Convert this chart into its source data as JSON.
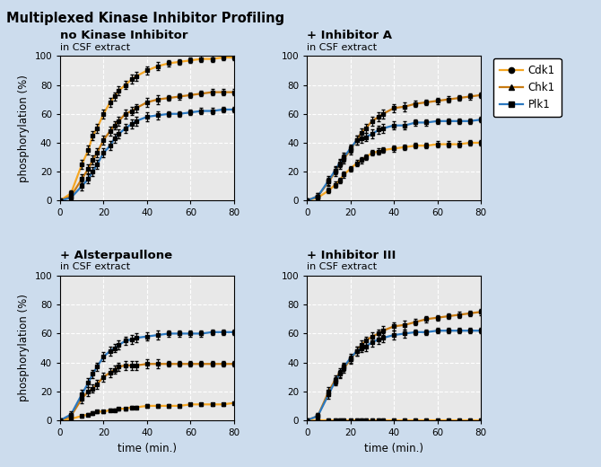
{
  "title": "Multiplexed Kinase Inhibitor Profiling",
  "subplots": [
    {
      "title": "no Kinase Inhibitor",
      "subtitle": "in CSF extract",
      "Cdk1": {
        "x": [
          0,
          5,
          10,
          13,
          15,
          17,
          20,
          23,
          25,
          27,
          30,
          33,
          35,
          40,
          45,
          50,
          55,
          60,
          65,
          70,
          75,
          80
        ],
        "y": [
          0,
          5,
          25,
          35,
          45,
          50,
          60,
          68,
          72,
          76,
          80,
          84,
          86,
          90,
          93,
          95,
          96,
          97,
          98,
          98,
          99,
          99
        ],
        "err": [
          0,
          2,
          3,
          3,
          3,
          3,
          3,
          3,
          3,
          3,
          3,
          3,
          3,
          3,
          3,
          2,
          2,
          2,
          2,
          2,
          2,
          2
        ]
      },
      "Chk1": {
        "x": [
          0,
          5,
          10,
          13,
          15,
          17,
          20,
          23,
          25,
          27,
          30,
          33,
          35,
          40,
          45,
          50,
          55,
          60,
          65,
          70,
          75,
          80
        ],
        "y": [
          0,
          3,
          15,
          22,
          28,
          33,
          42,
          48,
          52,
          55,
          60,
          62,
          64,
          68,
          70,
          71,
          72,
          73,
          74,
          75,
          75,
          75
        ],
        "err": [
          0,
          2,
          3,
          3,
          3,
          3,
          3,
          3,
          3,
          3,
          3,
          3,
          3,
          3,
          3,
          2,
          2,
          2,
          2,
          2,
          2,
          2
        ]
      },
      "Plk1": {
        "x": [
          0,
          5,
          10,
          13,
          15,
          17,
          20,
          23,
          25,
          27,
          30,
          33,
          35,
          40,
          45,
          50,
          55,
          60,
          65,
          70,
          75,
          80
        ],
        "y": [
          0,
          2,
          10,
          15,
          20,
          25,
          33,
          38,
          43,
          46,
          50,
          53,
          55,
          58,
          59,
          60,
          60,
          61,
          62,
          62,
          63,
          63
        ],
        "err": [
          0,
          2,
          3,
          3,
          3,
          3,
          3,
          3,
          3,
          3,
          3,
          3,
          3,
          3,
          3,
          2,
          2,
          2,
          2,
          2,
          2,
          2
        ]
      }
    },
    {
      "title": "+ Inhibitor A",
      "subtitle": "in CSF extract",
      "Cdk1": {
        "x": [
          0,
          5,
          10,
          13,
          15,
          17,
          20,
          23,
          25,
          27,
          30,
          33,
          35,
          40,
          45,
          50,
          55,
          60,
          65,
          70,
          75,
          80
        ],
        "y": [
          0,
          2,
          7,
          11,
          14,
          18,
          22,
          26,
          28,
          30,
          33,
          34,
          35,
          36,
          37,
          38,
          38,
          39,
          39,
          39,
          40,
          40
        ],
        "err": [
          0,
          2,
          2,
          2,
          2,
          2,
          2,
          2,
          2,
          2,
          2,
          2,
          2,
          2,
          2,
          2,
          2,
          2,
          2,
          2,
          2,
          2
        ]
      },
      "Chk1": {
        "x": [
          0,
          5,
          10,
          13,
          15,
          17,
          20,
          23,
          25,
          27,
          30,
          33,
          35,
          40,
          45,
          50,
          55,
          60,
          65,
          70,
          75,
          80
        ],
        "y": [
          0,
          3,
          13,
          20,
          25,
          29,
          35,
          42,
          47,
          50,
          55,
          58,
          60,
          64,
          65,
          67,
          68,
          69,
          70,
          71,
          72,
          73
        ],
        "err": [
          0,
          2,
          3,
          3,
          3,
          3,
          3,
          3,
          3,
          3,
          3,
          3,
          3,
          3,
          3,
          2,
          2,
          2,
          2,
          2,
          2,
          2
        ]
      },
      "Plk1": {
        "x": [
          0,
          5,
          10,
          13,
          15,
          17,
          20,
          23,
          25,
          27,
          30,
          33,
          35,
          40,
          45,
          50,
          55,
          60,
          65,
          70,
          75,
          80
        ],
        "y": [
          0,
          3,
          14,
          21,
          26,
          30,
          36,
          42,
          43,
          44,
          46,
          49,
          50,
          52,
          52,
          54,
          54,
          55,
          55,
          55,
          55,
          56
        ],
        "err": [
          0,
          2,
          3,
          3,
          3,
          3,
          3,
          3,
          3,
          3,
          3,
          3,
          3,
          3,
          3,
          2,
          2,
          2,
          2,
          2,
          2,
          2
        ]
      }
    },
    {
      "title": "+ Alsterpaullone",
      "subtitle": "in CSF extract",
      "Cdk1": {
        "x": [
          0,
          5,
          10,
          13,
          15,
          17,
          20,
          23,
          25,
          27,
          30,
          33,
          35,
          40,
          45,
          50,
          55,
          60,
          65,
          70,
          75,
          80
        ],
        "y": [
          0,
          1,
          3,
          4,
          5,
          6,
          6,
          7,
          7,
          8,
          8,
          9,
          9,
          10,
          10,
          10,
          10,
          11,
          11,
          11,
          11,
          12
        ],
        "err": [
          0,
          1,
          1,
          1,
          1,
          1,
          1,
          1,
          1,
          1,
          1,
          1,
          1,
          1,
          1,
          1,
          1,
          1,
          1,
          1,
          1,
          1
        ]
      },
      "Chk1": {
        "x": [
          0,
          5,
          10,
          13,
          15,
          17,
          20,
          23,
          25,
          27,
          30,
          33,
          35,
          40,
          45,
          50,
          55,
          60,
          65,
          70,
          75,
          80
        ],
        "y": [
          0,
          3,
          15,
          20,
          22,
          25,
          30,
          33,
          35,
          37,
          38,
          38,
          38,
          39,
          39,
          39,
          39,
          39,
          39,
          39,
          39,
          39
        ],
        "err": [
          0,
          2,
          3,
          3,
          3,
          3,
          3,
          3,
          3,
          3,
          3,
          3,
          3,
          3,
          3,
          2,
          2,
          2,
          2,
          2,
          2,
          2
        ]
      },
      "Plk1": {
        "x": [
          0,
          5,
          10,
          13,
          15,
          17,
          20,
          23,
          25,
          27,
          30,
          33,
          35,
          40,
          45,
          50,
          55,
          60,
          65,
          70,
          75,
          80
        ],
        "y": [
          0,
          4,
          18,
          26,
          32,
          37,
          44,
          48,
          50,
          52,
          55,
          56,
          57,
          58,
          59,
          60,
          60,
          60,
          60,
          61,
          61,
          61
        ],
        "err": [
          0,
          2,
          3,
          3,
          3,
          3,
          3,
          3,
          3,
          3,
          3,
          3,
          3,
          3,
          3,
          2,
          2,
          2,
          2,
          2,
          2,
          2
        ]
      }
    },
    {
      "title": "+ Inhibitor III",
      "subtitle": "in CSF extract",
      "Cdk1": {
        "x": [
          0,
          5,
          10,
          13,
          15,
          17,
          20,
          23,
          25,
          27,
          30,
          33,
          35,
          40,
          45,
          50,
          55,
          60,
          65,
          70,
          75,
          80
        ],
        "y": [
          0,
          0,
          0,
          0,
          0,
          0,
          0,
          0,
          0,
          0,
          0,
          0,
          0,
          0,
          0,
          0,
          0,
          0,
          0,
          0,
          0,
          0
        ],
        "err": [
          0,
          1,
          1,
          1,
          1,
          1,
          1,
          1,
          1,
          1,
          1,
          1,
          1,
          1,
          1,
          1,
          1,
          1,
          1,
          1,
          1,
          1
        ]
      },
      "Chk1": {
        "x": [
          0,
          5,
          10,
          13,
          15,
          17,
          20,
          23,
          25,
          27,
          30,
          33,
          35,
          40,
          45,
          50,
          55,
          60,
          65,
          70,
          75,
          80
        ],
        "y": [
          0,
          3,
          20,
          28,
          33,
          36,
          42,
          48,
          52,
          55,
          58,
          60,
          62,
          65,
          66,
          68,
          70,
          71,
          72,
          73,
          74,
          75
        ],
        "err": [
          0,
          2,
          3,
          3,
          3,
          3,
          3,
          3,
          3,
          3,
          3,
          3,
          3,
          3,
          3,
          2,
          2,
          2,
          2,
          2,
          2,
          2
        ]
      },
      "Plk1": {
        "x": [
          0,
          5,
          10,
          13,
          15,
          17,
          20,
          23,
          25,
          27,
          30,
          33,
          35,
          40,
          45,
          50,
          55,
          60,
          65,
          70,
          75,
          80
        ],
        "y": [
          0,
          3,
          18,
          27,
          32,
          37,
          43,
          48,
          50,
          51,
          54,
          56,
          57,
          59,
          60,
          61,
          61,
          62,
          62,
          62,
          62,
          62
        ],
        "err": [
          0,
          2,
          3,
          3,
          3,
          3,
          3,
          3,
          3,
          3,
          3,
          3,
          3,
          3,
          3,
          2,
          2,
          2,
          2,
          2,
          2,
          2
        ]
      }
    }
  ],
  "colors": {
    "Cdk1": "#f5a623",
    "Chk1": "#c87a10",
    "Plk1": "#2b78c0"
  },
  "xlabel": "time (min.)",
  "ylabel": "phosphorylation (%)",
  "xlim": [
    0,
    80
  ],
  "ylim": [
    0,
    100
  ],
  "xticks": [
    0,
    20,
    40,
    60,
    80
  ],
  "yticks": [
    0,
    20,
    40,
    60,
    80,
    100
  ],
  "figure_bg": "#ccdced",
  "plot_bg": "#e8e8e8",
  "grid_color": "#ffffff",
  "legend_labels": [
    "Cdk1",
    "Chk1",
    "Plk1"
  ]
}
